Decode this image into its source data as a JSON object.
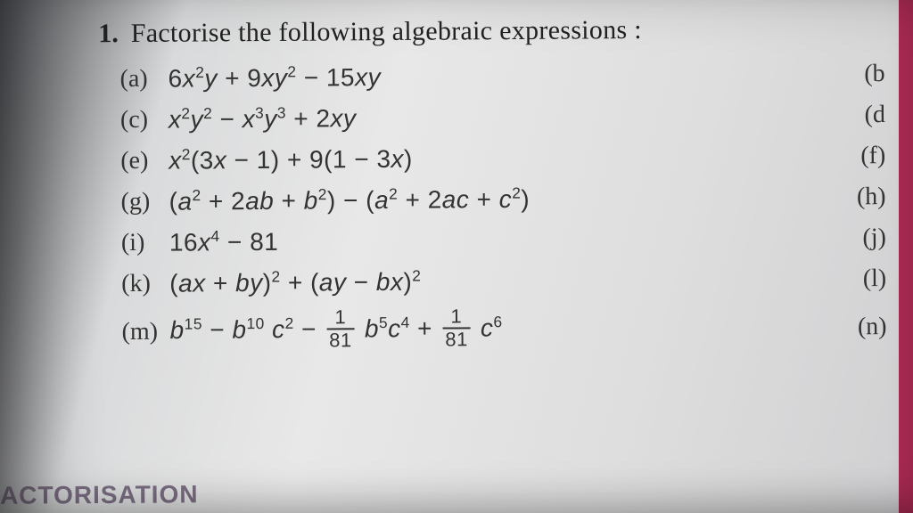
{
  "question": {
    "number": "1.",
    "text": "Factorise the following algebraic expressions :"
  },
  "items": [
    {
      "label": "(a)",
      "exprHtml": "6<i>x</i><sup>2</sup><i>y</i> + 9<i>xy</i><sup>2</sup> − 15<i>xy</i>",
      "right": "(b"
    },
    {
      "label": "(c)",
      "exprHtml": "<i>x</i><sup>2</sup><i>y</i><sup>2</sup> − <i>x</i><sup>3</sup><i>y</i><sup>3</sup> + 2<i>xy</i>",
      "right": "(d"
    },
    {
      "label": "(e)",
      "exprHtml": "<i>x</i><sup>2</sup>(3<i>x</i> − 1) + 9(1 − 3<i>x</i>)",
      "right": "(f)"
    },
    {
      "label": "(g)",
      "exprHtml": "(<i>a</i><sup>2</sup> + 2<i>ab</i> + <i>b</i><sup>2</sup>) − (<i>a</i><sup>2</sup> + 2<i>ac</i> + <i>c</i><sup>2</sup>)",
      "right": "(h)"
    },
    {
      "label": "(i)",
      "exprHtml": "16<i>x</i><sup>4</sup> − 81",
      "right": "(j)"
    },
    {
      "label": "(k)",
      "exprHtml": "(<i>ax</i> + <i>by</i>)<sup>2</sup> + (<i>ay</i> − <i>bx</i>)<sup>2</sup>",
      "right": "(l)"
    },
    {
      "label": "(m)",
      "exprHtml": "<i>b</i><sup>15</sup> − <i>b</i><sup>10</sup> <i>c</i><sup>2</sup> − <span class=\"frac\"><span class=\"num\">1</span><span class=\"den\">81</span></span> <i>b</i><sup>5</sup><i>c</i><sup>4</sup> + <span class=\"frac\"><span class=\"num\">1</span><span class=\"den\">81</span></span> <i>c</i><sup>6</sup>",
      "right": "(n)"
    }
  ],
  "footer": "ACTORISATION",
  "colors": {
    "text": "#2a2a2a",
    "footer": "#7a6e82",
    "rightStrip": "#a82a52"
  }
}
